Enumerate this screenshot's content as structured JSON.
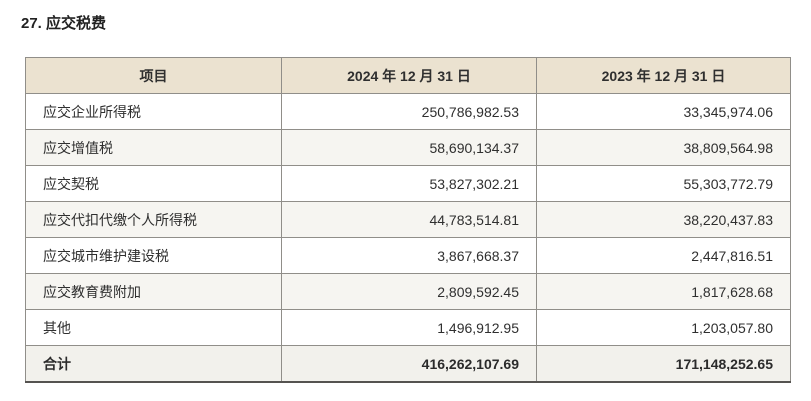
{
  "page": {
    "title": "27. 应交税费"
  },
  "table": {
    "columns": {
      "item": "项目",
      "y2024": "2024 年 12 月 31 日",
      "y2023": "2023 年 12 月 31 日"
    },
    "rows": [
      {
        "item": "应交企业所得税",
        "v2024": "250,786,982.53",
        "v2023": "33,345,974.06"
      },
      {
        "item": "应交增值税",
        "v2024": "58,690,134.37",
        "v2023": "38,809,564.98"
      },
      {
        "item": "应交契税",
        "v2024": "53,827,302.21",
        "v2023": "55,303,772.79"
      },
      {
        "item": "应交代扣代缴个人所得税",
        "v2024": "44,783,514.81",
        "v2023": "38,220,437.83"
      },
      {
        "item": "应交城市维护建设税",
        "v2024": "3,867,668.37",
        "v2023": "2,447,816.51"
      },
      {
        "item": "应交教育费附加",
        "v2024": "2,809,592.45",
        "v2023": "1,817,628.68"
      },
      {
        "item": "其他",
        "v2024": "1,496,912.95",
        "v2023": "1,203,057.80"
      }
    ],
    "total": {
      "item": "合计",
      "v2024": "416,262,107.69",
      "v2023": "171,148,252.65"
    }
  },
  "colors": {
    "header_background": "#ebe2d0",
    "alt_row_background": "#f6f5f1",
    "total_row_background": "#f2f1ec",
    "border": "#908e89",
    "text": "#2f2f2f",
    "page_background": "#ffffff"
  }
}
